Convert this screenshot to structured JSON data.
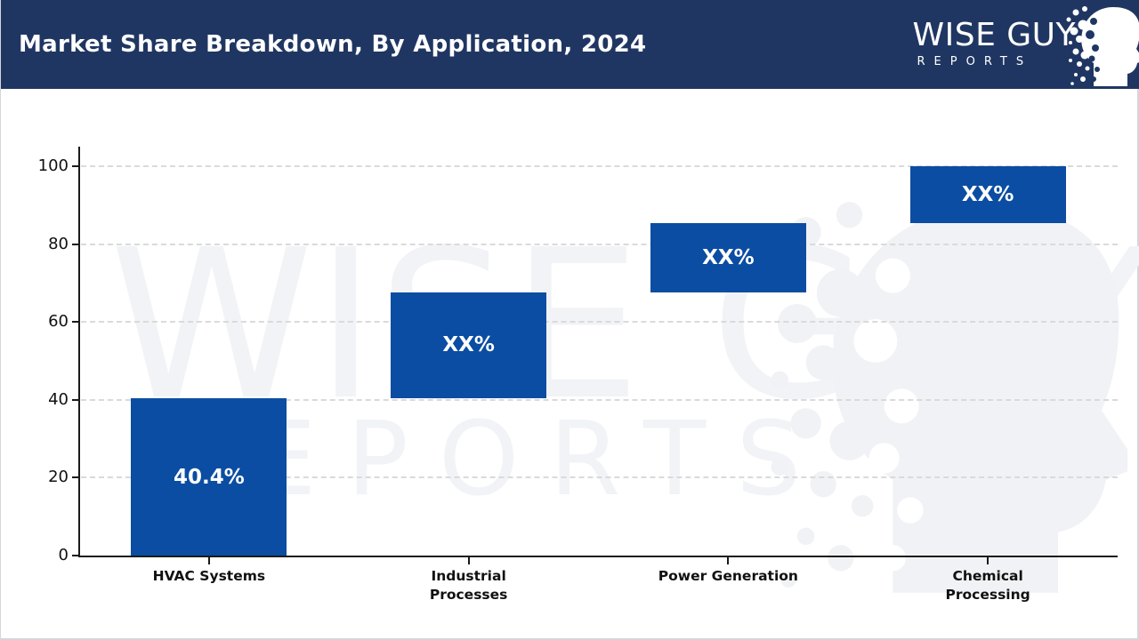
{
  "page": {
    "background": "#ffffff",
    "border_color": "#d4d6da"
  },
  "header": {
    "bg_color": "#203662",
    "title": "Market Share Breakdown, By Application, 2024",
    "logo": {
      "wordmark": "WISE GUY",
      "subtext": "REPORTS"
    }
  },
  "watermark": {
    "wordmark": "WISE GUY",
    "subtext": "REPORTS"
  },
  "chart_data": {
    "type": "bar",
    "subtype": "waterfall",
    "title": "Market Share Breakdown, By Application, 2024",
    "categories": [
      "HVAC Systems",
      "Industrial Processes",
      "Power Generation",
      "Chemical Processing"
    ],
    "category_lines": [
      [
        "HVAC Systems"
      ],
      [
        "Industrial",
        "Processes"
      ],
      [
        "Power Generation"
      ],
      [
        "Chemical",
        "Processing"
      ]
    ],
    "segments": [
      {
        "category": "HVAC Systems",
        "start": 0,
        "end": 40.4,
        "value": 40.4,
        "label": "40.4%"
      },
      {
        "category": "Industrial Processes",
        "start": 40.4,
        "end": 67.6,
        "value": 27.2,
        "label": "XX%"
      },
      {
        "category": "Power Generation",
        "start": 67.6,
        "end": 85.4,
        "value": 17.8,
        "label": "XX%"
      },
      {
        "category": "Chemical Processing",
        "start": 85.4,
        "end": 100,
        "value": 14.6,
        "label": "XX%"
      }
    ],
    "ylim": [
      0,
      100
    ],
    "yticks": [
      0,
      20,
      40,
      60,
      80,
      100
    ],
    "grid": {
      "axis": "y",
      "style": "dashed",
      "color": "#dadada"
    },
    "bar_color": "#0b4da2",
    "bar_label_color": "#ffffff",
    "axis_color": "#1a1a1a",
    "legend": "none"
  }
}
